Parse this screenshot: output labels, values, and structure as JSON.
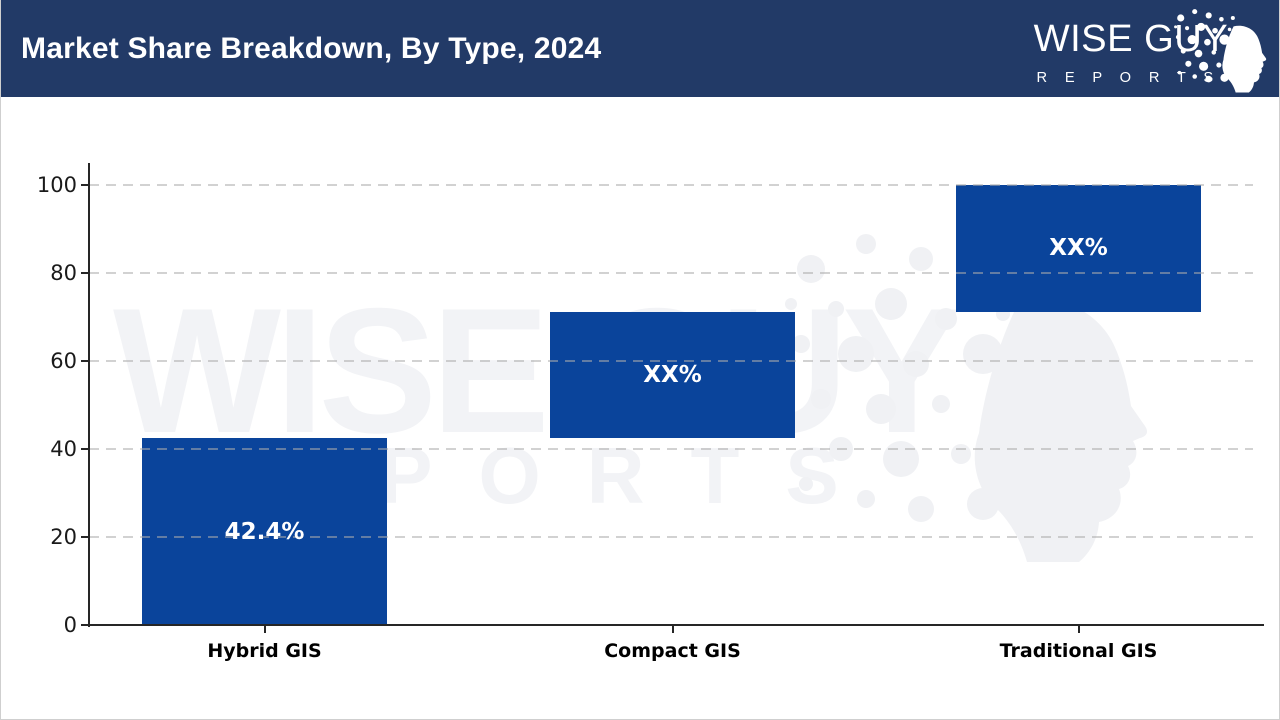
{
  "header": {
    "title": "Market Share Breakdown, By Type, 2024",
    "logo": {
      "name": "WISE GUY",
      "subtitle": "R E P O R T S"
    }
  },
  "watermark": {
    "line1": "WISE GUY",
    "line2": "REPORTS"
  },
  "colors": {
    "header_bg": "#223A67",
    "bar": "#0A449B",
    "axis": "#262626",
    "grid": "#d4d4d4",
    "watermark": "#f1f2f5"
  },
  "chart_data": {
    "type": "bar",
    "subtype": "waterfall",
    "title": "Market Share Breakdown, By Type, 2024",
    "categories": [
      "Hybrid GIS",
      "Compact GIS",
      "Traditional GIS"
    ],
    "segments": [
      {
        "category": "Hybrid GIS",
        "start": 0,
        "end": 42.4,
        "label": "42.4%"
      },
      {
        "category": "Compact GIS",
        "start": 42.4,
        "end": 71.2,
        "label": "XX%"
      },
      {
        "category": "Traditional GIS",
        "start": 71.2,
        "end": 100,
        "label": "XX%"
      }
    ],
    "yticks": [
      0,
      20,
      40,
      60,
      80,
      100
    ],
    "ylim": [
      0,
      105
    ],
    "xlabel": "",
    "ylabel": "",
    "grid": "horizontal-dashed",
    "legend": "none",
    "bar_color": "#0A449B",
    "value_label_color": "#ffffff"
  }
}
